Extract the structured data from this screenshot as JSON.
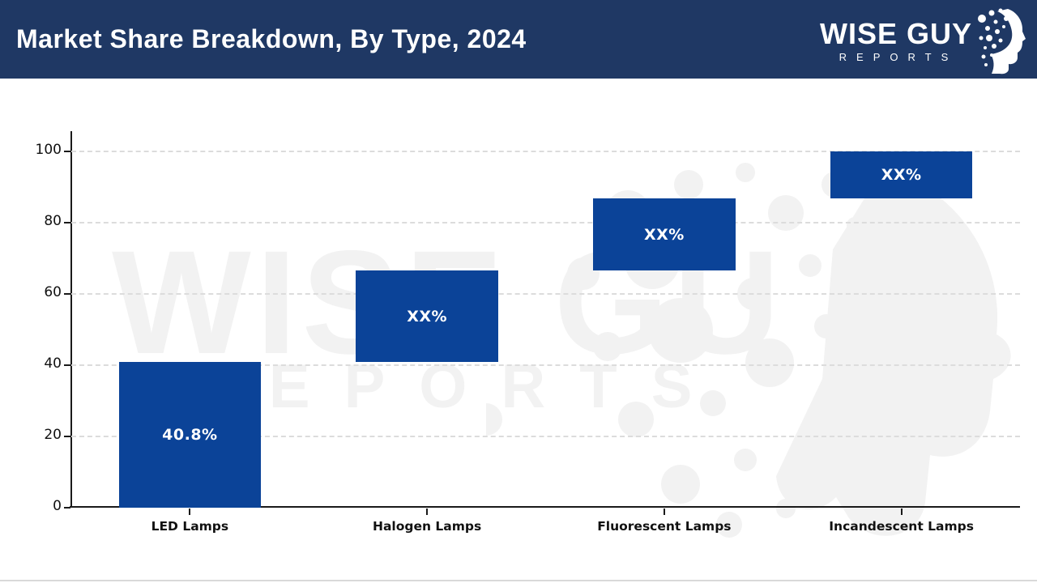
{
  "header": {
    "title": "Market Share Breakdown, By Type, 2024",
    "logo": {
      "line1": "WISE GUY",
      "line2": "REPORTS"
    }
  },
  "watermark": {
    "line1": "WISE GU",
    "line2": "REPORTS"
  },
  "chart_data": {
    "type": "bar",
    "subtype": "waterfall-floating-bars",
    "title": "Market Share Breakdown, By Type, 2024",
    "categories": [
      "LED Lamps",
      "Halogen Lamps",
      "Fluorescent Lamps",
      "Incandescent Lamps"
    ],
    "segments": [
      {
        "category": "LED Lamps",
        "start": 0,
        "end": 40.8,
        "label": "40.8%"
      },
      {
        "category": "Halogen Lamps",
        "start": 40.8,
        "end": 66.5,
        "label": "XX%"
      },
      {
        "category": "Fluorescent Lamps",
        "start": 66.5,
        "end": 86.8,
        "label": "XX%"
      },
      {
        "category": "Incandescent Lamps",
        "start": 86.8,
        "end": 100,
        "label": "XX%"
      }
    ],
    "yticks": [
      0,
      20,
      40,
      60,
      80,
      100
    ],
    "ylim": [
      0,
      105
    ],
    "xlabel": "",
    "ylabel": "",
    "grid": "horizontal-dashed",
    "legend": "none",
    "bar_color": "#0b4398",
    "bar_label_color": "#ffffff"
  },
  "colors": {
    "header_bg": "#1f3864",
    "bar": "#0b4398",
    "grid": "#dcdcdc",
    "axis": "#1a1a1a",
    "watermark": "#f2f2f2",
    "bottom_line": "#d9d9d9"
  }
}
